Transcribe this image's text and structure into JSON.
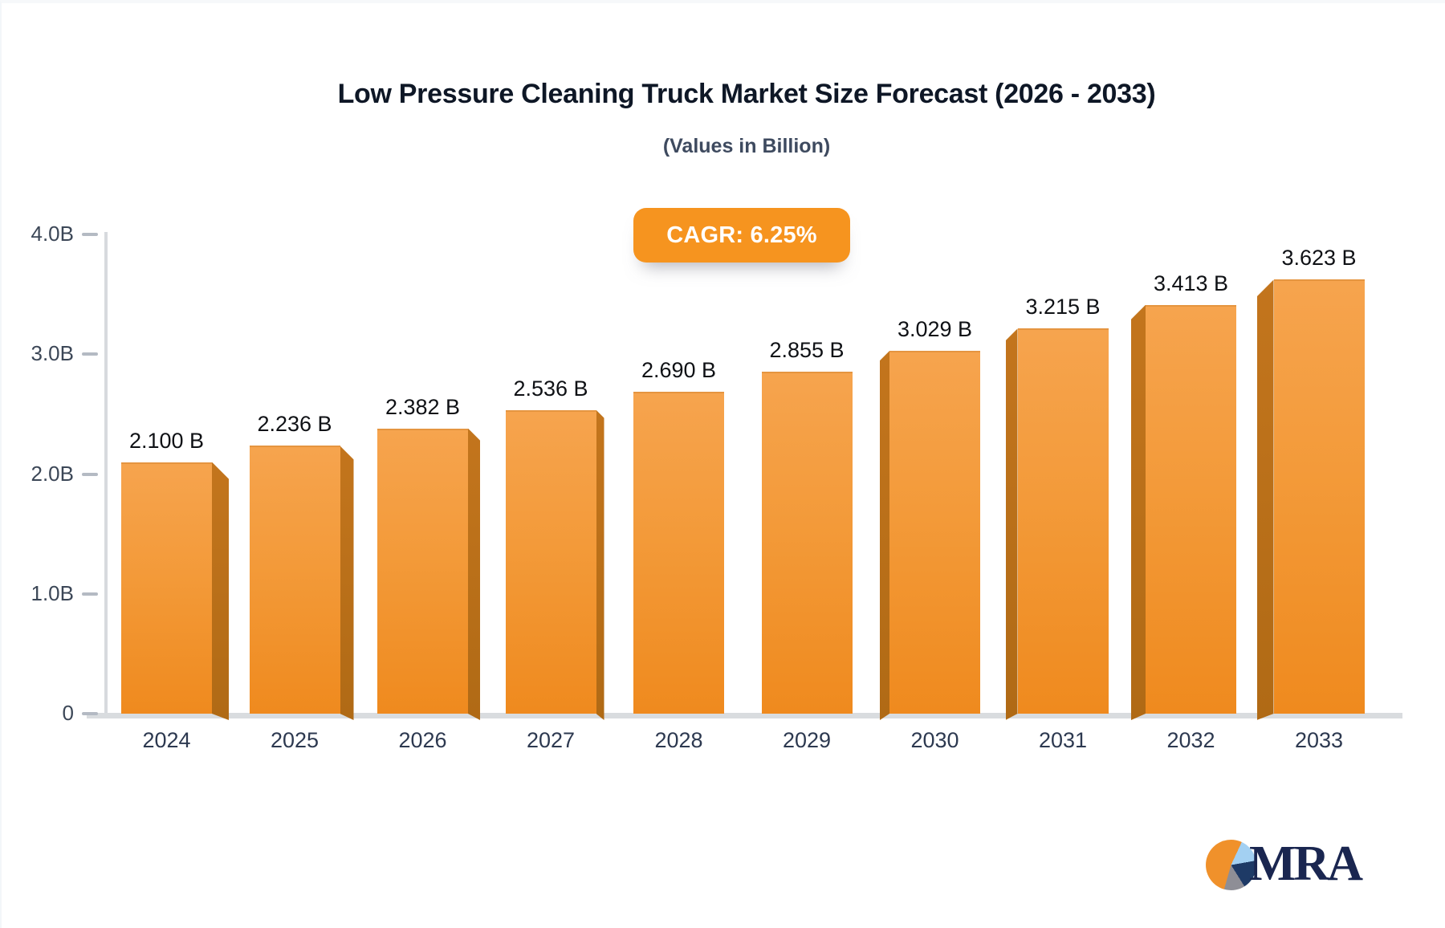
{
  "header": {
    "title": "Low Pressure Cleaning Truck Market Size Forecast (2026 - 2033)",
    "subtitle": "(Values in Billion)"
  },
  "badge": {
    "label": "CAGR: 6.25%",
    "bg_color": "#F6941F",
    "text_color": "#FFFFFF"
  },
  "chart_data": {
    "type": "bar",
    "title": "Low Pressure Cleaning Truck Market Size Forecast (2026 - 2033)",
    "subtitle": "(Values in Billion)",
    "cagr": "6.25%",
    "categories": [
      "2024",
      "2025",
      "2026",
      "2027",
      "2028",
      "2029",
      "2030",
      "2031",
      "2032",
      "2033"
    ],
    "values": [
      2.1,
      2.236,
      2.382,
      2.536,
      2.69,
      2.855,
      3.029,
      3.215,
      3.413,
      3.623
    ],
    "value_labels": [
      "2.100 B",
      "2.236 B",
      "2.382 B",
      "2.536 B",
      "2.690 B",
      "2.855 B",
      "3.029 B",
      "3.215 B",
      "3.413 B",
      "3.623 B"
    ],
    "xlabel": "",
    "ylabel": "",
    "ylim": [
      0,
      4.0
    ],
    "yticks": [
      "4.0B",
      "3.0B",
      "2.0B",
      "1.0B",
      "0"
    ],
    "ytick_values": [
      4.0,
      3.0,
      2.0,
      1.0,
      0
    ],
    "grid": false,
    "legend": null,
    "bar_color": "#F39A39",
    "bar_side_color": "#BE701D",
    "bar_style": "3d-extruded, perspective from center"
  },
  "logo": {
    "text": "MRA",
    "text_color": "#1A2650",
    "pie": {
      "orange": "#F0912B",
      "light_blue": "#A3D0F2",
      "navy": "#1E3A66",
      "gray": "#8E8E96"
    }
  }
}
